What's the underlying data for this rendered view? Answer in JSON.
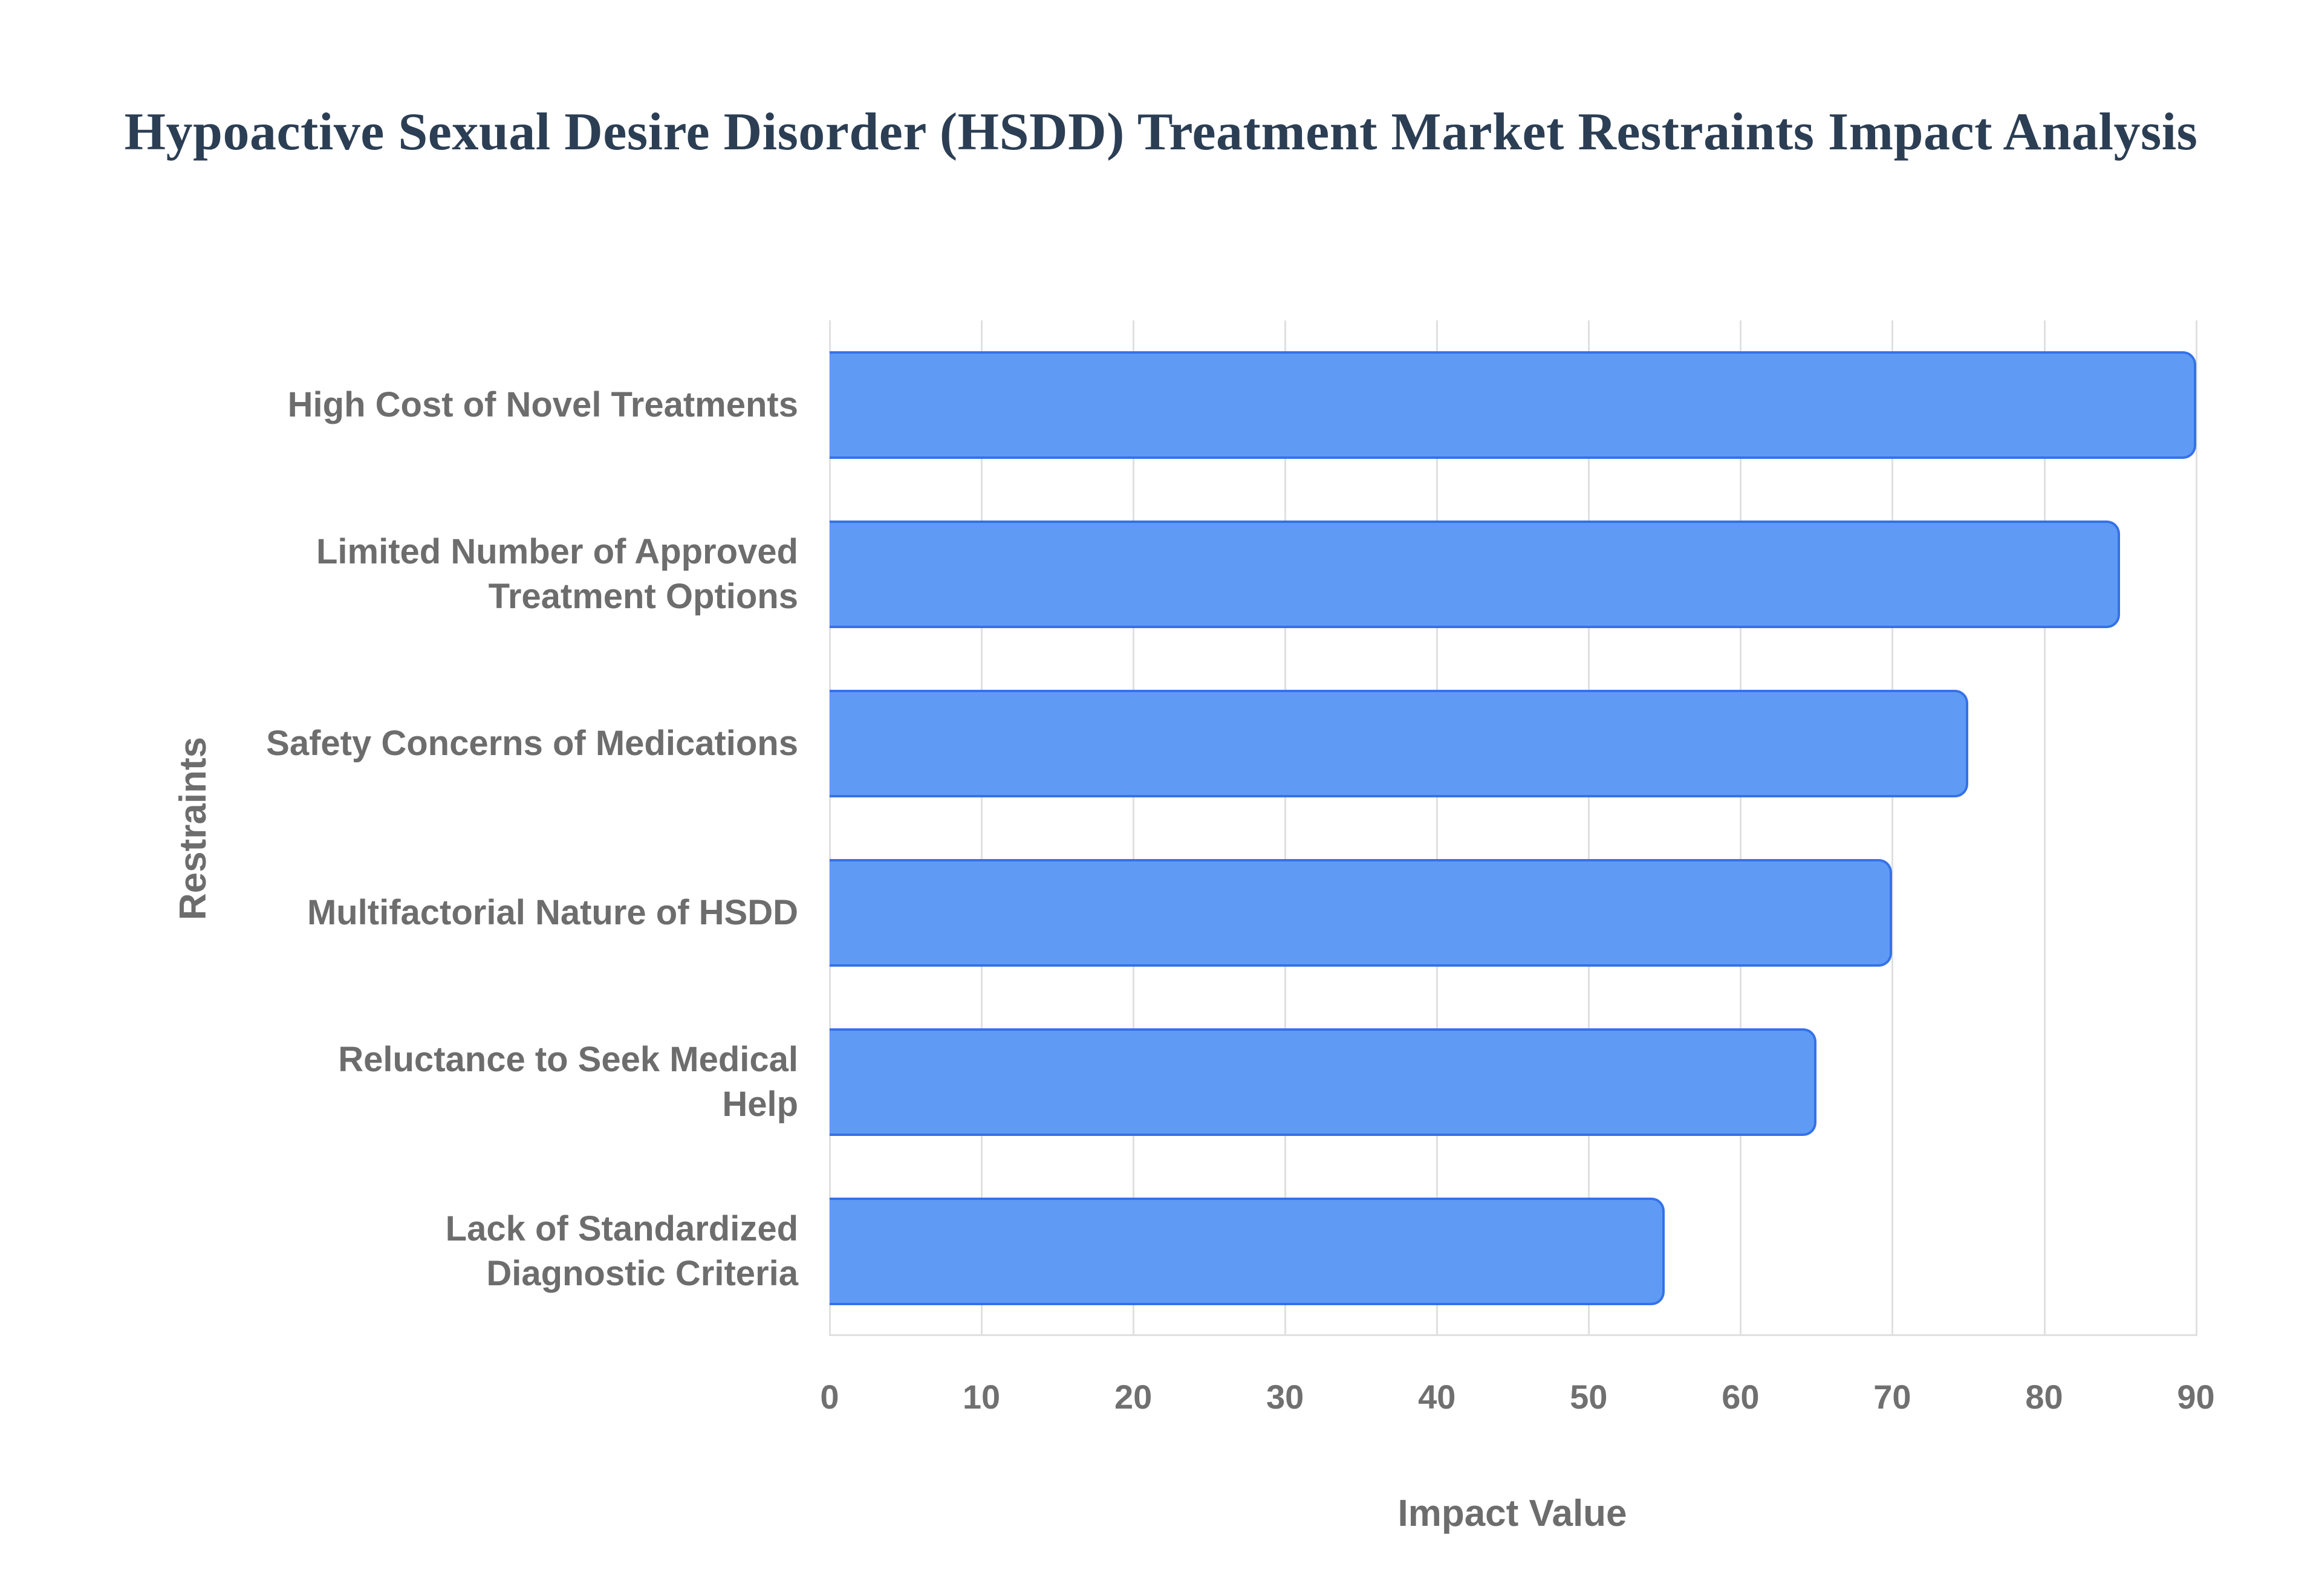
{
  "chart_data": {
    "type": "bar",
    "orientation": "horizontal",
    "title": "Hypoactive Sexual Desire Disorder (HSDD) Treatment Market Restraints Impact Analysis",
    "xlabel": "Impact Value",
    "ylabel": "Restraints",
    "categories": [
      "High Cost of Novel Treatments",
      "Limited Number of Approved Treatment Options",
      "Safety Concerns of Medications",
      "Multifactorial Nature of HSDD",
      "Reluctance to Seek Medical Help",
      "Lack of Standardized Diagnostic Criteria"
    ],
    "category_display": [
      "High Cost of Novel Treatments",
      "Limited Number of Approved\nTreatment Options",
      "Safety Concerns of Medications",
      "Multifactorial Nature of HSDD",
      "Reluctance to Seek Medical\nHelp",
      "Lack of Standardized\nDiagnostic Criteria"
    ],
    "values": [
      90,
      85,
      75,
      70,
      65,
      55
    ],
    "xlim": [
      0,
      94
    ],
    "xticks": [
      0,
      10,
      20,
      30,
      40,
      50,
      60,
      70,
      80,
      90
    ],
    "grid": "vertical",
    "legend": "none",
    "colors": {
      "bar_fill": "#5f9bf5",
      "bar_border": "#3572e8",
      "gridline": "#e0e0e0",
      "title_text": "#2b3e54",
      "label_text": "#6d6d6d",
      "tick_text": "#707070",
      "background": "#ffffff"
    }
  }
}
